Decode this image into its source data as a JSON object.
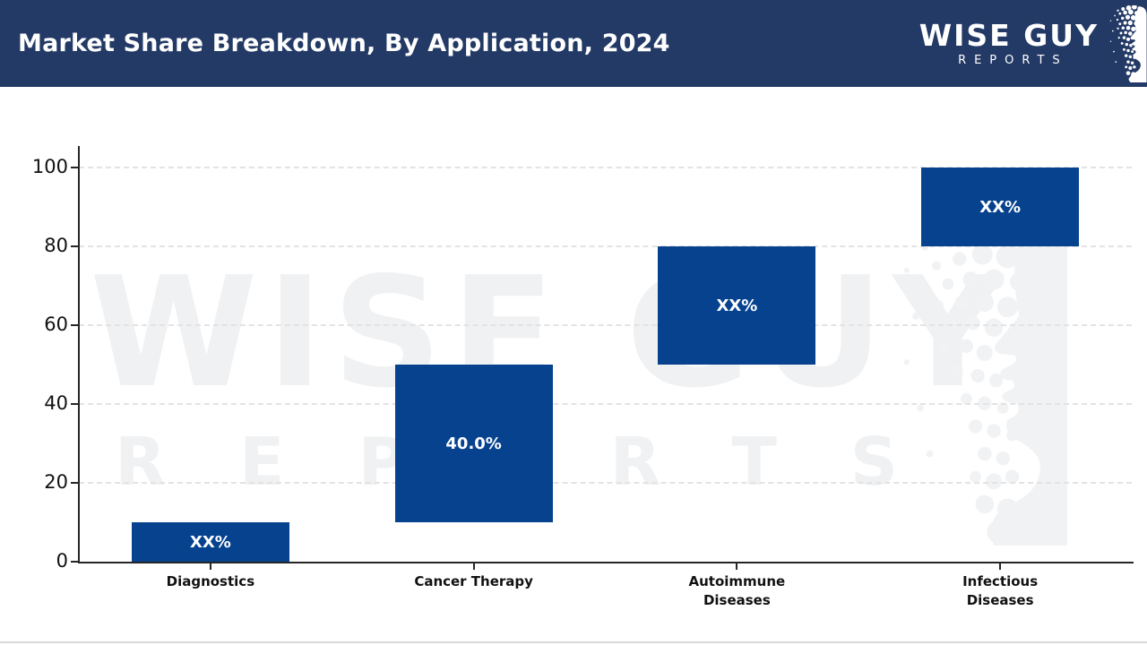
{
  "header": {
    "title": "Market Share Breakdown, By Application, 2024",
    "bg_color": "#233a66",
    "logo": {
      "line1": "WISE GUY",
      "line2": "REPORTS"
    }
  },
  "watermark": {
    "line1": "WISE GUY",
    "line2": "REPORTS"
  },
  "chart_data": {
    "type": "bar",
    "subtype": "waterfall",
    "title": "Market Share Breakdown, By Application, 2024",
    "categories": [
      "Diagnostics",
      "Cancer Therapy",
      "Autoimmune Diseases",
      "Infectious Diseases"
    ],
    "values": [
      10,
      40,
      30,
      20
    ],
    "segments": [
      {
        "category": "Diagnostics",
        "start": 0,
        "end": 10,
        "label": "XX%"
      },
      {
        "category": "Cancer Therapy",
        "start": 10,
        "end": 50,
        "label": "40.0%"
      },
      {
        "category": "Autoimmune Diseases",
        "start": 50,
        "end": 80,
        "label": "XX%"
      },
      {
        "category": "Infectious Diseases",
        "start": 80,
        "end": 100,
        "label": "XX%"
      }
    ],
    "xlabel": "",
    "ylabel": "",
    "ylim": [
      0,
      100
    ],
    "yticks": [
      0,
      20,
      40,
      60,
      80,
      100
    ],
    "grid": true,
    "grid_style": "dashed",
    "legend": "none",
    "bar_color": "#07428f",
    "bar_label_color": "#ffffff",
    "grid_color": "#e3e3e3",
    "axis_color": "#262626"
  }
}
